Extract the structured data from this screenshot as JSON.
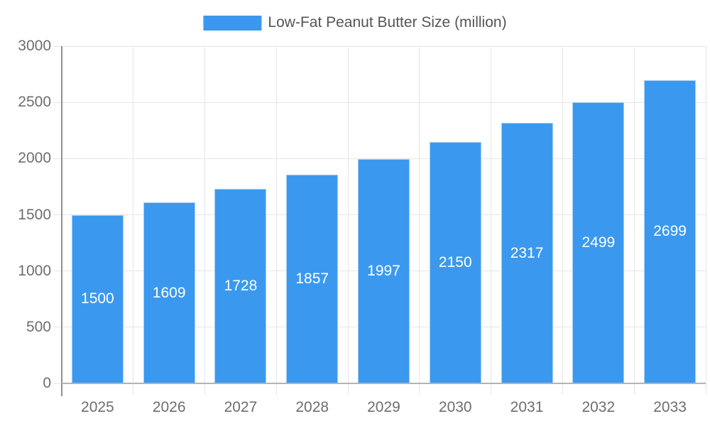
{
  "legend": {
    "label": "Low-Fat Peanut Butter Size (million)"
  },
  "colors": {
    "background": "#FFFFFF",
    "bar": "#3A99EE",
    "bar_edge": "#A6CDF3",
    "bar_label": "#FFFFFF",
    "grid": "#E6E6E6",
    "axis_line": "#8F8F8F",
    "baseline": "#B3B3B3",
    "tick_text": "#6E6E6E",
    "legend_text": "#555555"
  },
  "chart_data": {
    "type": "bar",
    "title": "",
    "xlabel": "",
    "ylabel": "",
    "categories": [
      "2025",
      "2026",
      "2027",
      "2028",
      "2029",
      "2030",
      "2031",
      "2032",
      "2033"
    ],
    "series": [
      {
        "name": "Low-Fat Peanut Butter Size (million)",
        "values": [
          1500,
          1609,
          1728,
          1857,
          1997,
          2150,
          2317,
          2499,
          2699
        ]
      }
    ],
    "ylim": [
      0,
      3000
    ],
    "yticks": [
      0,
      500,
      1000,
      1500,
      2000,
      2500,
      3000
    ],
    "grid": true,
    "legend_position": "top-center",
    "value_labels": "inside-center"
  }
}
